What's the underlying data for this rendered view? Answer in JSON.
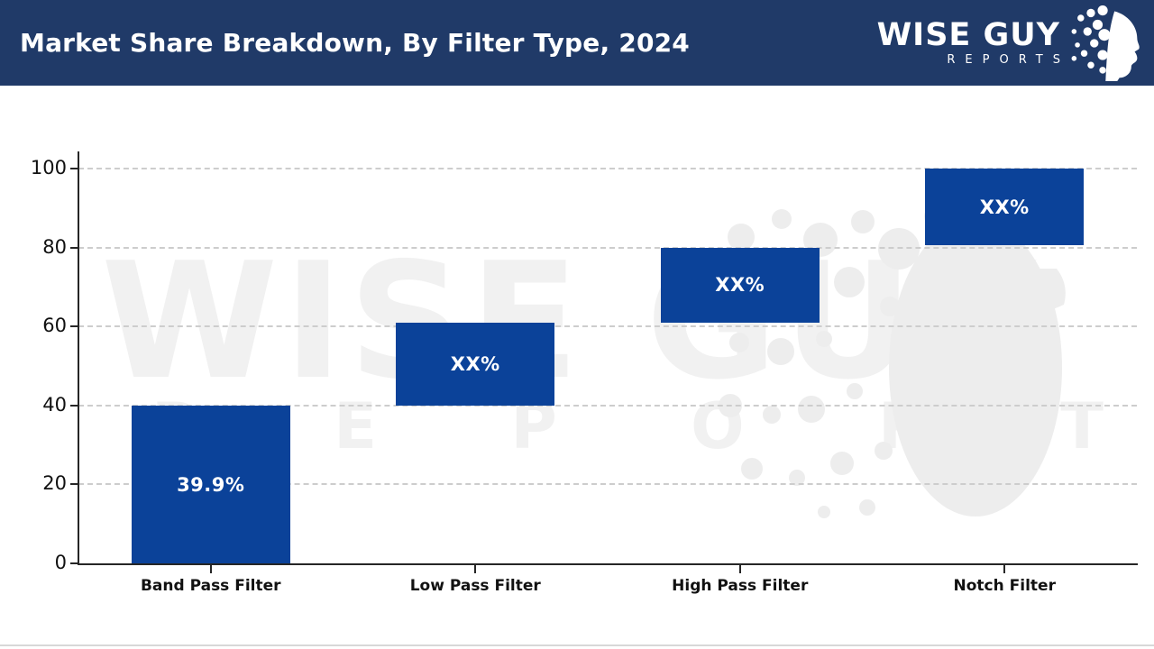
{
  "header": {
    "title": "Market Share Breakdown, By Filter Type, 2024",
    "logo": {
      "line1": "WISE GUY",
      "line2": "REPORTS",
      "icon": "dotted-head-profile"
    }
  },
  "watermark": {
    "line1": "WISE GUY",
    "line2": "R E P O R T S",
    "icon": "dotted-head-profile"
  },
  "colors": {
    "header_bg": "#203a68",
    "bar_blue": "#0b4299",
    "gridline": "#cdcdcd",
    "watermark": "#f1f1f1",
    "axis": "#262626"
  },
  "chart_data": {
    "type": "bar",
    "subtype": "waterfall",
    "title": "Market Share Breakdown, By Filter Type, 2024",
    "categories": [
      "Band Pass Filter",
      "Low Pass Filter",
      "High Pass Filter",
      "Notch Filter"
    ],
    "segments": [
      {
        "label": "39.9%",
        "start": 0,
        "end": 39.9
      },
      {
        "label": "XX%",
        "start": 40,
        "end": 61
      },
      {
        "label": "XX%",
        "start": 61,
        "end": 80
      },
      {
        "label": "XX%",
        "start": 80.5,
        "end": 100
      }
    ],
    "xlabel": "",
    "ylabel": "",
    "ylim": [
      0,
      100
    ],
    "yticks": [
      0,
      20,
      40,
      60,
      80,
      100
    ],
    "grid": "horizontal dashed, behind bars",
    "legend": "none",
    "bar_color": "#0b4299",
    "value_label_color": "#ffffff"
  }
}
